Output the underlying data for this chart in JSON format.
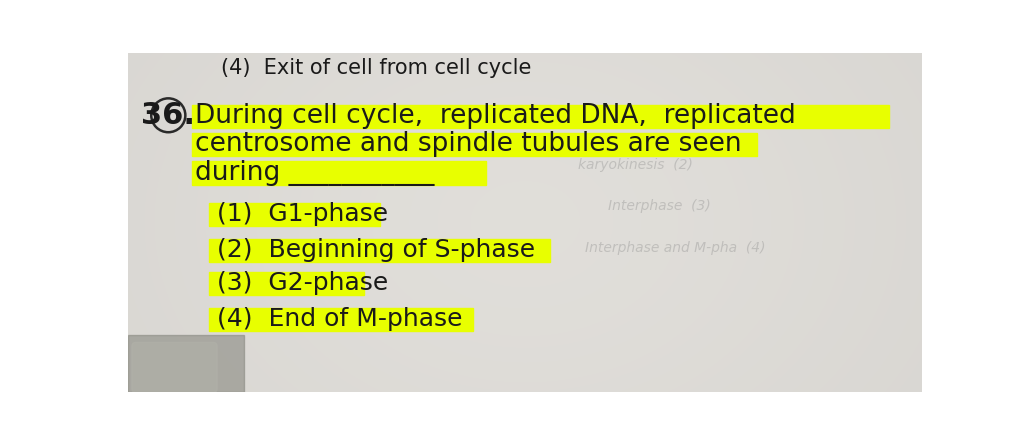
{
  "bg_color": "#c8c4bc",
  "paper_color": "#d4d0c8",
  "highlight_color": "#e8ff00",
  "text_color": "#1a1a1a",
  "top_text": "(4)  Exit of cell from cell cycle",
  "question_number": "36.",
  "q_line1": "During cell cycle,  replicated DNA,  replicated",
  "q_line2": "centrosome and spindle tubules are seen",
  "q_line3": "during ___________",
  "options": [
    "(1)  G1-phase",
    "(2)  Beginning of S-phase",
    "(3)  G2-phase",
    "(4)  End of M-phase"
  ],
  "font_size_top": 15,
  "font_size_q": 19,
  "font_size_opts": 18,
  "font_size_qnum": 22
}
